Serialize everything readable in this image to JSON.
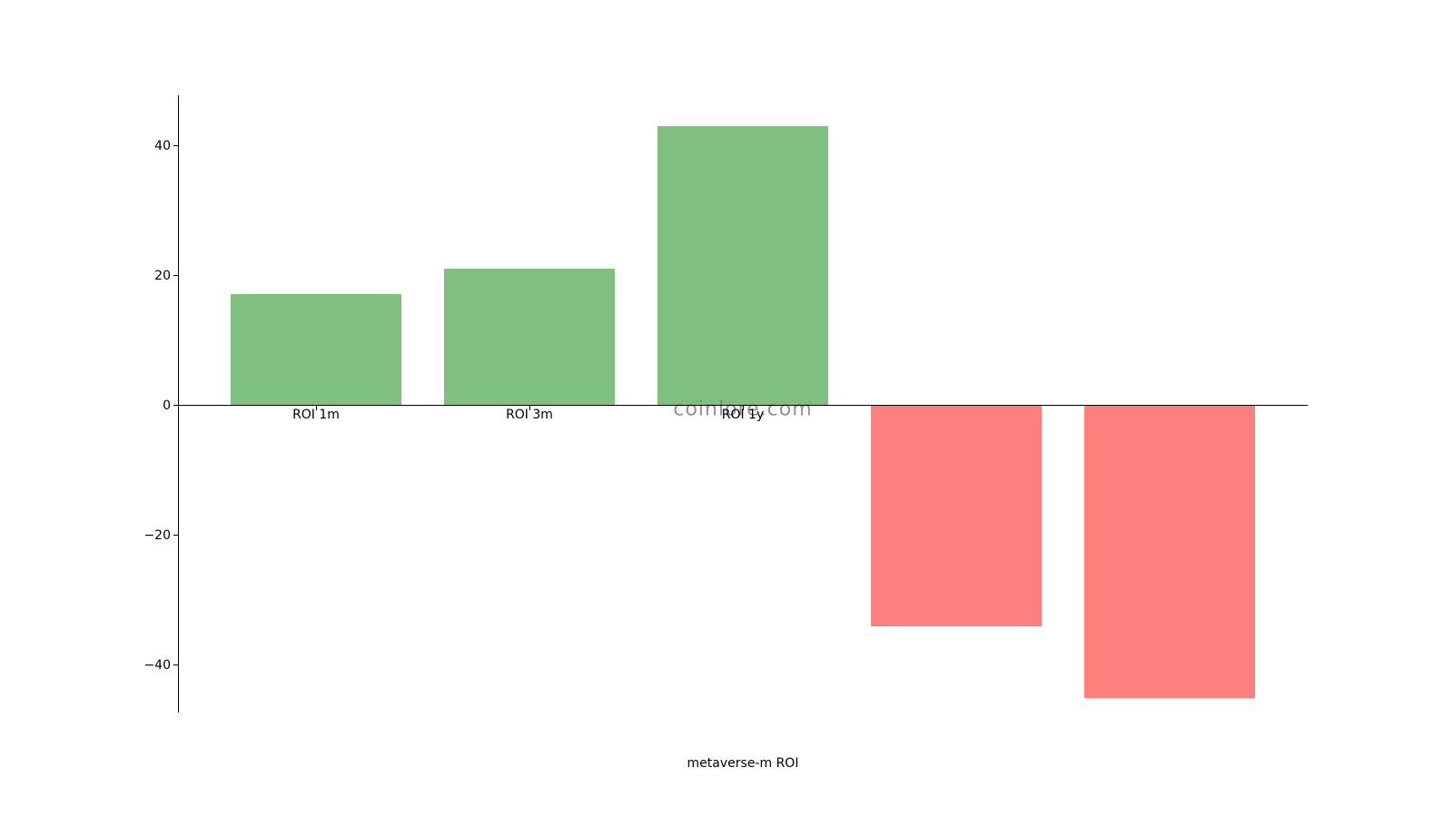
{
  "watermark": {
    "text": "coinlore.com",
    "color": "#787878"
  },
  "chart_data": {
    "type": "bar",
    "title": "metaverse-m ROI",
    "xlabel": "",
    "ylabel": "",
    "categories": [
      "ROI 1m",
      "ROI 3m",
      "ROI 1y",
      "",
      ""
    ],
    "values": [
      17,
      21,
      43,
      -34,
      -45
    ],
    "bar_colors": [
      "#7fbf7f",
      "#7fbf7f",
      "#7fbf7f",
      "#ff7f7f",
      "#ff7f7f"
    ],
    "positive_color": "#7fbf7f",
    "negative_color": "#ff7f7f",
    "yticks": [
      40,
      20,
      0,
      -20,
      -40
    ],
    "ytick_labels": [
      "40",
      "20",
      "0",
      "−20",
      "−40"
    ],
    "ylim": [
      -47,
      48
    ],
    "grid": false,
    "legend": null,
    "annotations": [
      {
        "text": "coinlore.com",
        "position": "center-on-zero-line",
        "color": "#787878"
      }
    ],
    "x_axis_position": "zero",
    "visible_x_labels": [
      "ROI 1m",
      "ROI 3m",
      "ROI 1y"
    ]
  }
}
